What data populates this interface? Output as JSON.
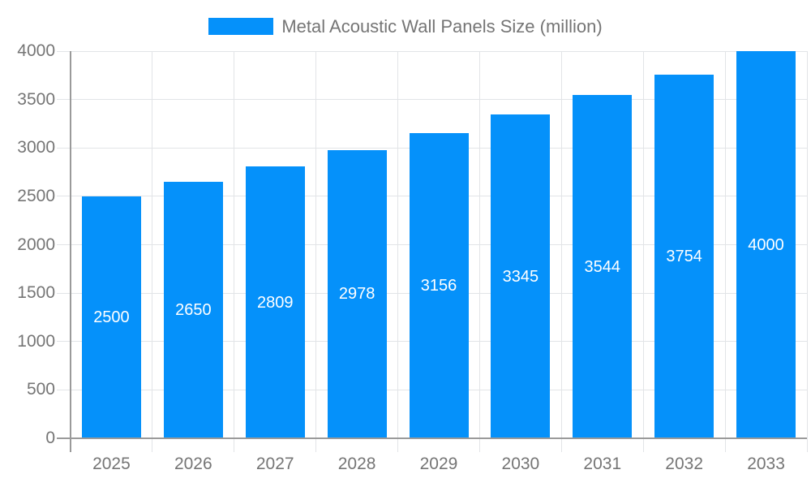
{
  "chart_data": {
    "type": "bar",
    "series_name": "Metal Acoustic Wall Panels Size (million)",
    "categories": [
      "2025",
      "2026",
      "2027",
      "2028",
      "2029",
      "2030",
      "2031",
      "2032",
      "2033"
    ],
    "values": [
      2500,
      2650,
      2809,
      2978,
      3156,
      3345,
      3544,
      3754,
      4000
    ],
    "ylim": [
      0,
      4000
    ],
    "yticks": [
      0,
      500,
      1000,
      1500,
      2000,
      2500,
      3000,
      3500,
      4000
    ],
    "grid": true,
    "legend_position": "top-center",
    "colors": {
      "bar": "#0591fa",
      "grid_line": "#e2e4e7",
      "axis_line": "#9a9a9a",
      "axis_text": "#757575",
      "value_label": "#ffffff",
      "background": "#ffffff"
    }
  }
}
